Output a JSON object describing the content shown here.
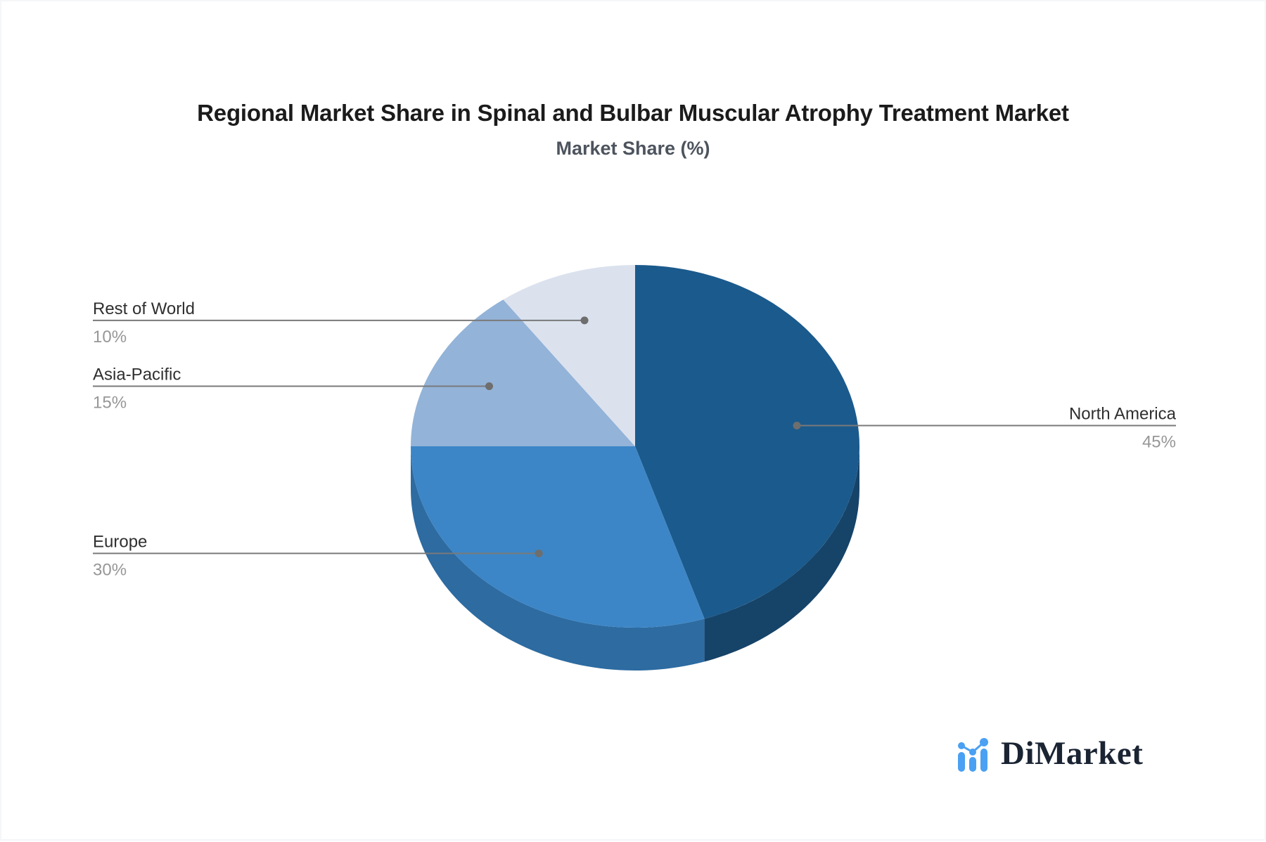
{
  "page": {
    "background": "#ffffff",
    "border_color": "#f5f6f8"
  },
  "header": {
    "title": "Regional Market Share in Spinal and Bulbar Muscular Atrophy Treatment Market",
    "subtitle": "Market Share (%)"
  },
  "brand": {
    "name": "DiMarket",
    "icon": "bar-line-chart-icon",
    "icon_color": "#4aa0f2",
    "text_color": "#1a2433"
  },
  "chart_data": {
    "type": "pie",
    "style": "3d",
    "title": "Regional Market Share in Spinal and Bulbar Muscular Atrophy Treatment Market",
    "subtitle": "Market Share (%)",
    "unit": "%",
    "start_angle": "top",
    "direction": "clockwise",
    "legend": "off",
    "labeling": "leader-lines",
    "categories": [
      "North America",
      "Europe",
      "Asia-Pacific",
      "Rest of World"
    ],
    "values": [
      45,
      30,
      15,
      10
    ],
    "slices": [
      {
        "label": "North America",
        "value": 45,
        "display": "45%",
        "color": "#1b5a8c",
        "side_color": "#164368",
        "label_side": "right"
      },
      {
        "label": "Europe",
        "value": 30,
        "display": "30%",
        "color": "#3c86c7",
        "side_color": "#2d6ba1",
        "label_side": "left"
      },
      {
        "label": "Asia-Pacific",
        "value": 15,
        "display": "15%",
        "color": "#93b3d8",
        "side_color": null,
        "label_side": "left"
      },
      {
        "label": "Rest of World",
        "value": 10,
        "display": "10%",
        "color": "#dbe2ee",
        "side_color": null,
        "label_side": "left"
      }
    ],
    "leader_line_color": "#7a7a7a",
    "leader_dot_color": "#6e6e6e",
    "label_color": "#2f2f2f",
    "value_color": "#979797"
  }
}
